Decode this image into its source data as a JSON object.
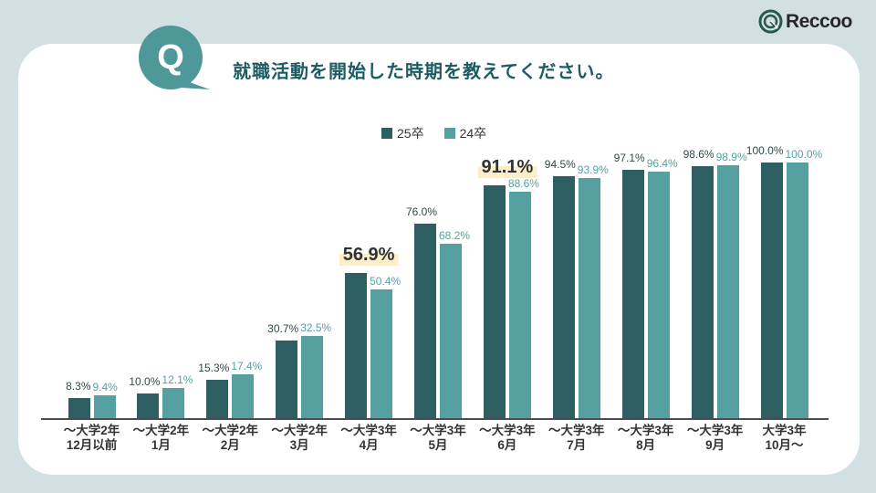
{
  "header": {
    "question_mark": "Q",
    "title": "就職活動を開始した時期を教えてください。",
    "brand": "Reccoo"
  },
  "colors": {
    "page_background": "#d3e0e3",
    "card_background": "#ffffff",
    "question_bubble": "#4f989a",
    "title_text": "#1d5c63",
    "series_dark": "#2d5f62",
    "series_light": "#57a0a2",
    "highlight_marker": "#fbeecb",
    "axis": "#4d4d4d"
  },
  "chart_data": {
    "type": "bar",
    "categories": [
      [
        "〜大学2年",
        "12月以前"
      ],
      [
        "〜大学2年",
        "1月"
      ],
      [
        "〜大学2年",
        "2月"
      ],
      [
        "〜大学2年",
        "3月"
      ],
      [
        "〜大学3年",
        "4月"
      ],
      [
        "〜大学3年",
        "5月"
      ],
      [
        "〜大学3年",
        "6月"
      ],
      [
        "〜大学3年",
        "7月"
      ],
      [
        "〜大学3年",
        "8月"
      ],
      [
        "〜大学3年",
        "9月"
      ],
      [
        "大学3年",
        "10月〜"
      ]
    ],
    "series": [
      {
        "name": "25卒",
        "color": "#2d5f62",
        "values": [
          8.3,
          10.0,
          15.3,
          30.7,
          56.9,
          76.0,
          91.1,
          94.5,
          97.1,
          98.6,
          100.0
        ]
      },
      {
        "name": "24卒",
        "color": "#57a0a2",
        "values": [
          9.4,
          12.1,
          17.4,
          32.5,
          50.4,
          68.2,
          88.6,
          93.9,
          96.4,
          98.9,
          100.0
        ]
      }
    ],
    "highlighted_indices": [
      4,
      6
    ],
    "value_suffix": "%",
    "ylim": [
      0,
      100
    ],
    "grid": false,
    "legend_position": "top-center"
  }
}
